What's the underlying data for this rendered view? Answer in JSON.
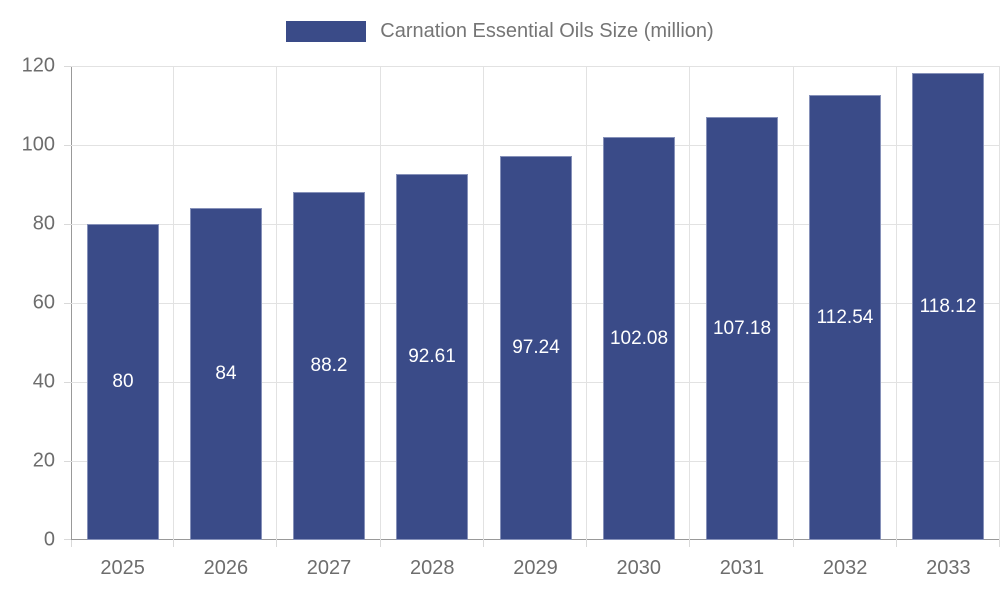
{
  "legend": {
    "label": "Carnation Essential Oils Size (million)"
  },
  "chart_data": {
    "type": "bar",
    "title": "Carnation Essential Oils Size (million)",
    "categories": [
      "2025",
      "2026",
      "2027",
      "2028",
      "2029",
      "2030",
      "2031",
      "2032",
      "2033"
    ],
    "values": [
      80,
      84,
      88.2,
      92.61,
      97.24,
      102.08,
      107.18,
      112.54,
      118.12
    ],
    "value_labels": [
      "80",
      "84",
      "88.2",
      "92.61",
      "97.24",
      "102.08",
      "107.18",
      "112.54",
      "118.12"
    ],
    "xlabel": "",
    "ylabel": "",
    "ylim": [
      0,
      120
    ],
    "yticks": [
      0,
      20,
      40,
      60,
      80,
      100,
      120
    ],
    "grid": true,
    "legend_position": "top-center",
    "colors": {
      "bar": "#3a4b88",
      "bar_label": "#ffffff",
      "gridline": "#e2e2e2",
      "tick": "#d9d9d9",
      "axis_line": "#999999",
      "tick_text": "#6d6d6d",
      "legend_text": "#757575",
      "background": "#ffffff"
    }
  }
}
